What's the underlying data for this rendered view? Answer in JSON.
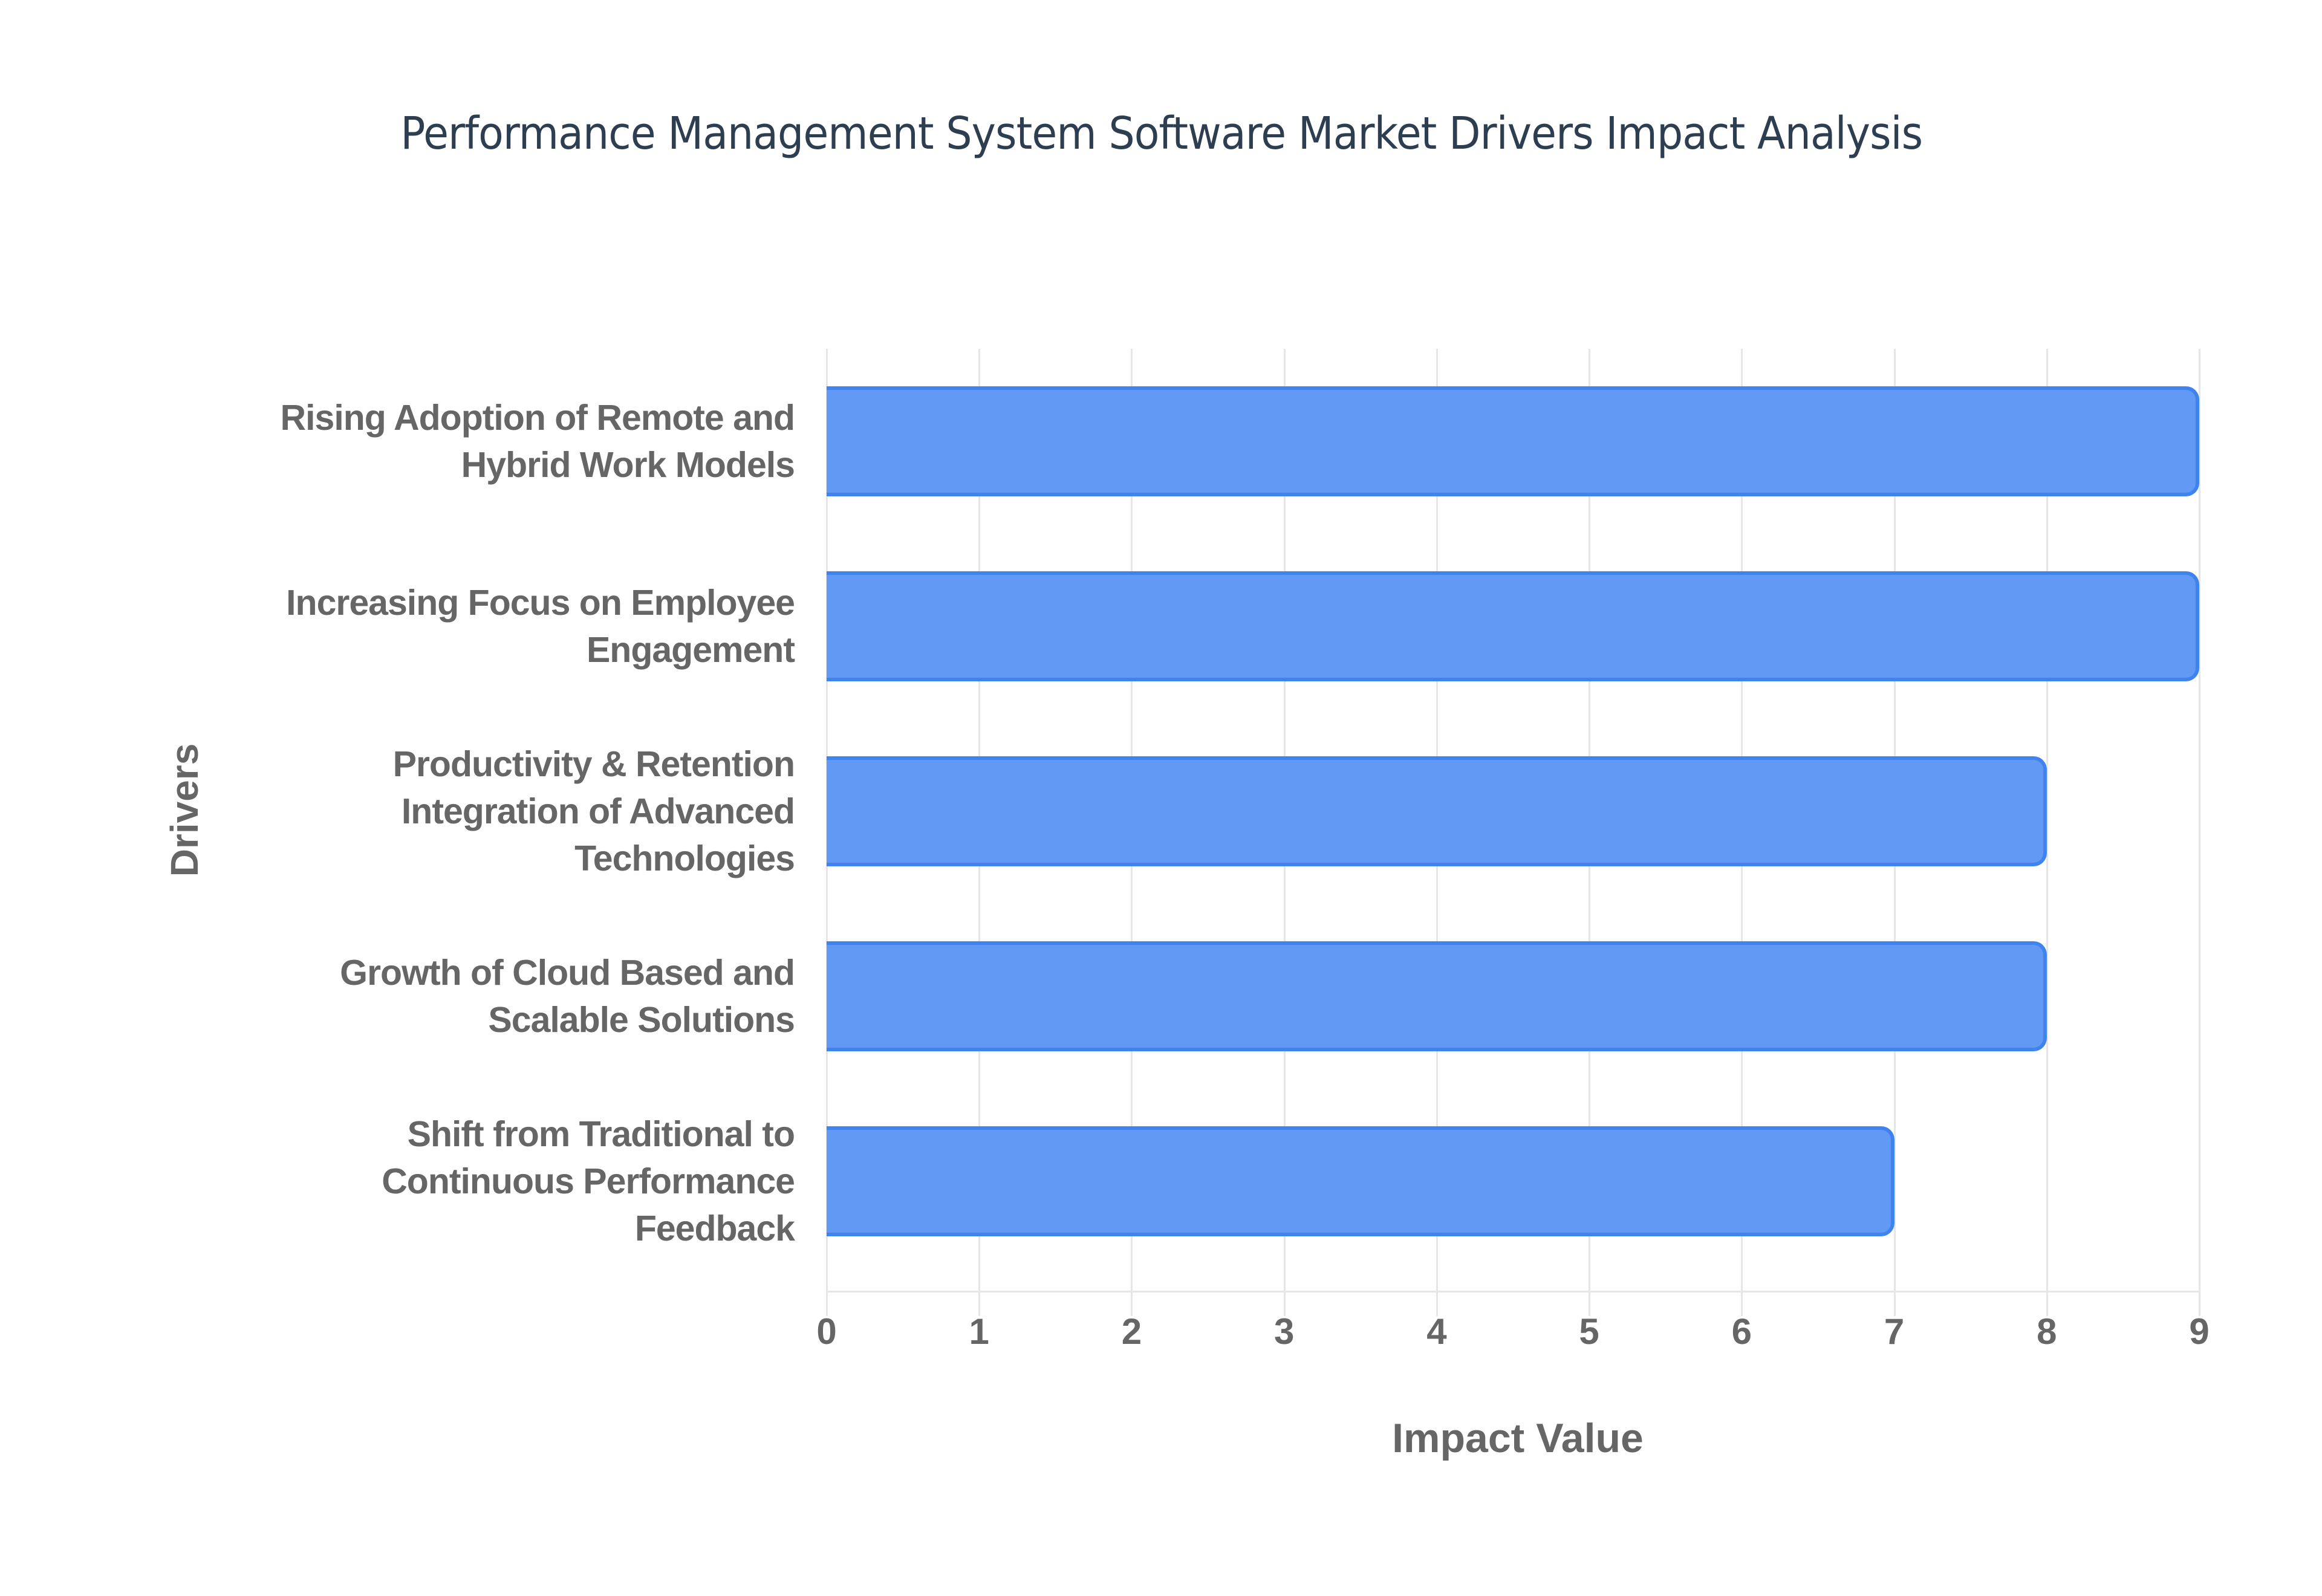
{
  "chart_data": {
    "type": "bar",
    "orientation": "horizontal",
    "title": "Performance Management System Software Market Drivers Impact Analysis",
    "xlabel": "Impact Value",
    "ylabel": "Drivers",
    "categories": [
      "Rising Adoption of Remote and Hybrid Work Models",
      "Increasing Focus on Employee Engagement",
      "Productivity & Retention Integration of Advanced Technologies",
      "Growth of Cloud Based and Scalable Solutions",
      "Shift from Traditional to Continuous Performance Feedback"
    ],
    "category_lines": [
      [
        "Rising Adoption of Remote and",
        "Hybrid Work Models"
      ],
      [
        "Increasing Focus on Employee",
        "Engagement"
      ],
      [
        "Productivity & Retention",
        "Integration of Advanced",
        "Technologies"
      ],
      [
        "Growth of Cloud Based and",
        "Scalable Solutions"
      ],
      [
        "Shift from Traditional to",
        "Continuous Performance",
        "Feedback"
      ]
    ],
    "values": [
      9,
      9,
      8,
      8,
      7
    ],
    "xlim": [
      0,
      9
    ],
    "xticks": [
      "0",
      "1",
      "2",
      "3",
      "4",
      "5",
      "6",
      "7",
      "8",
      "9"
    ],
    "grid": true,
    "legend": null,
    "colors": {
      "bar_fill": "#6199f4",
      "bar_border": "#3f83ef",
      "text": "#666666",
      "title": "#2c3e50",
      "grid": "#e6e6e6"
    }
  }
}
